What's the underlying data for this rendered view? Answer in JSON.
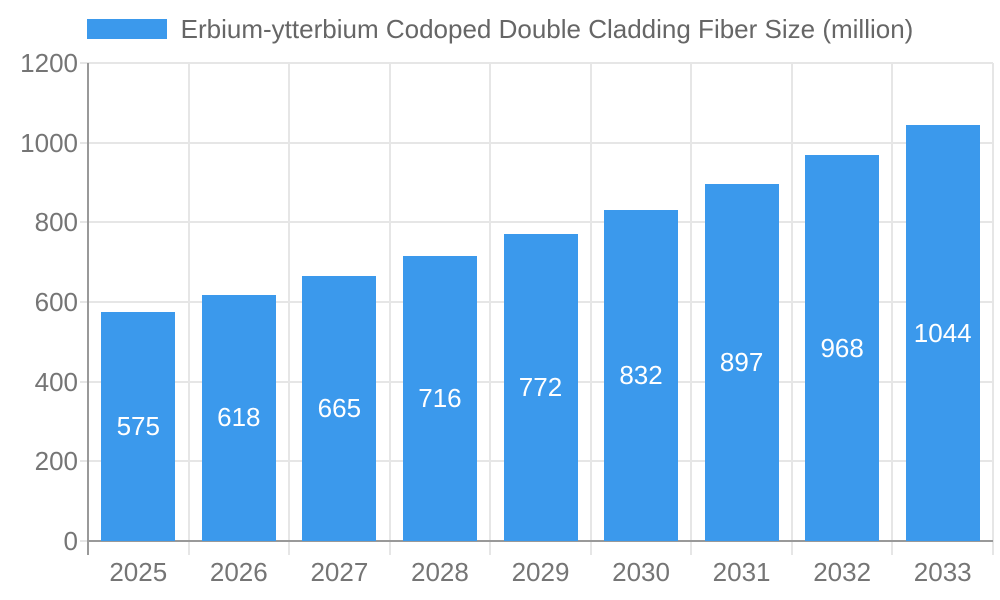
{
  "legend": {
    "label": "Erbium-ytterbium Codoped Double Cladding Fiber Size (million)"
  },
  "chart_data": {
    "type": "bar",
    "title": "",
    "series_name": "Erbium-ytterbium Codoped Double Cladding Fiber Size (million)",
    "categories": [
      "2025",
      "2026",
      "2027",
      "2028",
      "2029",
      "2030",
      "2031",
      "2032",
      "2033"
    ],
    "values": [
      575,
      618,
      665,
      716,
      772,
      832,
      897,
      968,
      1044
    ],
    "xlabel": "",
    "ylabel": "",
    "ylim": [
      0,
      1200
    ],
    "yticks": [
      0,
      200,
      400,
      600,
      800,
      1000,
      1200
    ],
    "grid": "on",
    "legend_position": "top",
    "value_label_position": "inside-center",
    "colors": {
      "bar": "#3b99ec",
      "value_label": "#ffffff",
      "grid_line": "#e6e6e6",
      "axis_line": "#999999",
      "axis_text": "#757575",
      "legend_text": "#666666"
    }
  }
}
